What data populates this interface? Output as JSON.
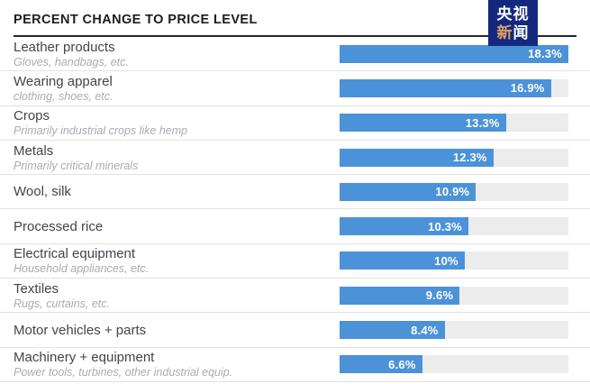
{
  "page": {
    "background": "#ffffff"
  },
  "header": {
    "title": "PERCENT CHANGE TO PRICE LEVEL"
  },
  "logo": {
    "name": "cctv-news-logo",
    "line1": "央视",
    "line2_first": "新",
    "line2_rest": "闻",
    "bg_color": "#14297E",
    "accent_color": "#DFA05E",
    "text_color": "#FFFFFF"
  },
  "chart_data": {
    "type": "bar",
    "orientation": "horizontal",
    "title": "PERCENT CHANGE TO PRICE LEVEL",
    "xlabel": "",
    "ylabel": "",
    "xlim": [
      0,
      18.3
    ],
    "grid": false,
    "legend": false,
    "bar_color": "#4B92D8",
    "track_color": "#ECECEC",
    "rows": [
      {
        "category": "Leather products",
        "subtitle": "Gloves, handbags, etc.",
        "value": 18.3,
        "label": "18.3%"
      },
      {
        "category": "Wearing apparel",
        "subtitle": "clothing, shoes, etc.",
        "value": 16.9,
        "label": "16.9%"
      },
      {
        "category": "Crops",
        "subtitle": "Primarily industrial crops like hemp",
        "value": 13.3,
        "label": "13.3%"
      },
      {
        "category": "Metals",
        "subtitle": "Primarily critical minerals",
        "value": 12.3,
        "label": "12.3%"
      },
      {
        "category": "Wool, silk",
        "subtitle": "",
        "value": 10.9,
        "label": "10.9%"
      },
      {
        "category": "Processed rice",
        "subtitle": "",
        "value": 10.3,
        "label": "10.3%"
      },
      {
        "category": "Electrical equipment",
        "subtitle": "Household appliances, etc.",
        "value": 10,
        "label": "10%"
      },
      {
        "category": "Textiles",
        "subtitle": "Rugs, curtains, etc.",
        "value": 9.6,
        "label": "9.6%"
      },
      {
        "category": "Motor vehicles + parts",
        "subtitle": "",
        "value": 8.4,
        "label": "8.4%"
      },
      {
        "category": "Machinery + equipment",
        "subtitle": "Power tools, turbines, other industrial equip.",
        "value": 6.6,
        "label": "6.6%"
      }
    ]
  }
}
